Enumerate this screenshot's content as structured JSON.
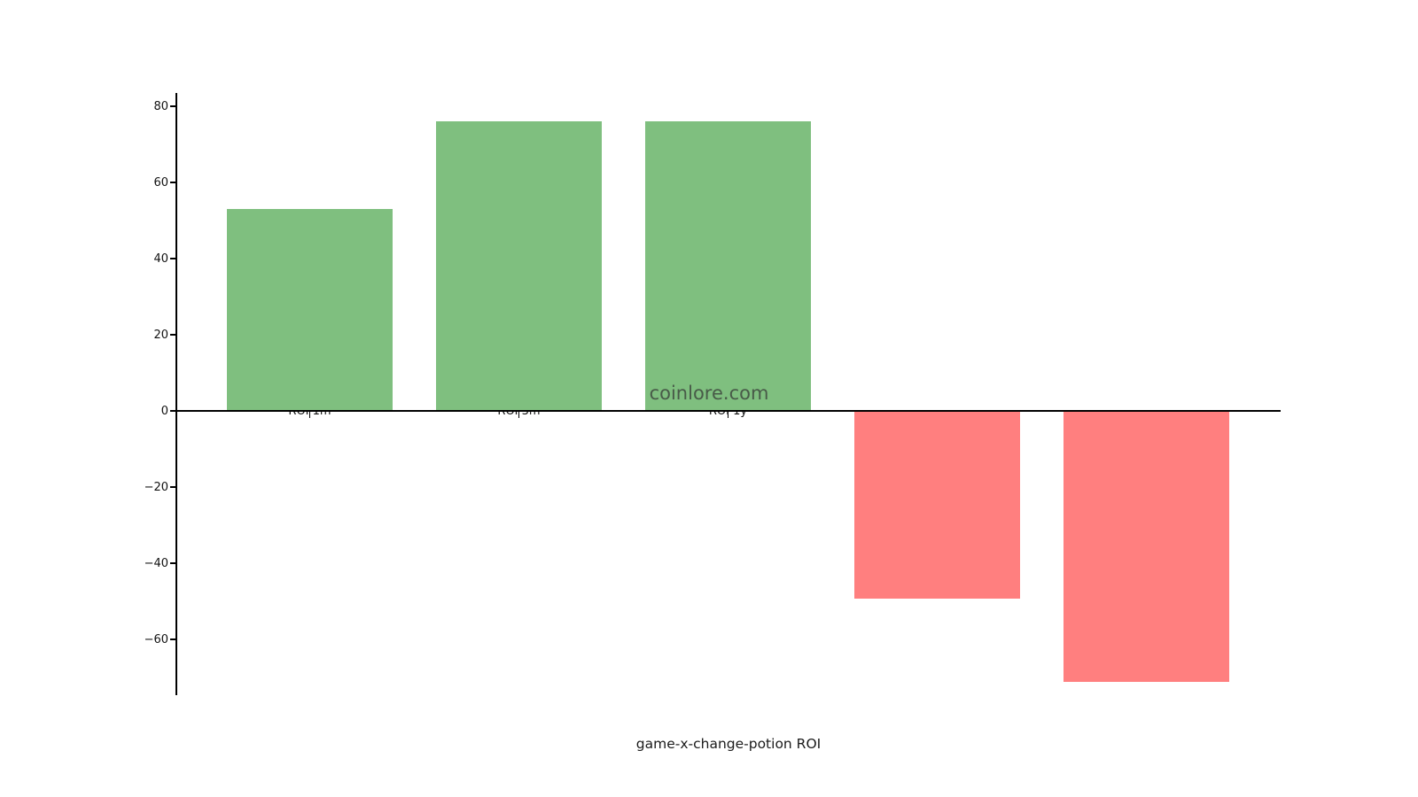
{
  "chart_data": {
    "type": "bar",
    "title": "game-x-change-potion ROI",
    "xlabel": "game-x-change-potion ROI",
    "ylabel": "",
    "watermark": "coinlore.com",
    "categories": [
      "ROI 1m",
      "ROI 3m",
      "ROI 1y",
      "",
      ""
    ],
    "values": [
      53,
      76,
      76,
      -49,
      -71
    ],
    "positive_color": "#7fbf7f",
    "negative_color": "#ff7f7f",
    "axis_color": "#000000",
    "tick_label_color": "#111111",
    "yticks": [
      {
        "label": "80",
        "value": 80
      },
      {
        "label": "60",
        "value": 60
      },
      {
        "label": "40",
        "value": 40
      },
      {
        "label": "20",
        "value": 20
      },
      {
        "label": "0",
        "value": 0
      },
      {
        "label": "−20",
        "value": -20
      },
      {
        "label": "−40",
        "value": -40
      },
      {
        "label": "−60",
        "value": -60
      }
    ],
    "ylim": [
      -74.5,
      83.5
    ],
    "grid": false,
    "legend_position": "none",
    "background": "#ffffff"
  }
}
